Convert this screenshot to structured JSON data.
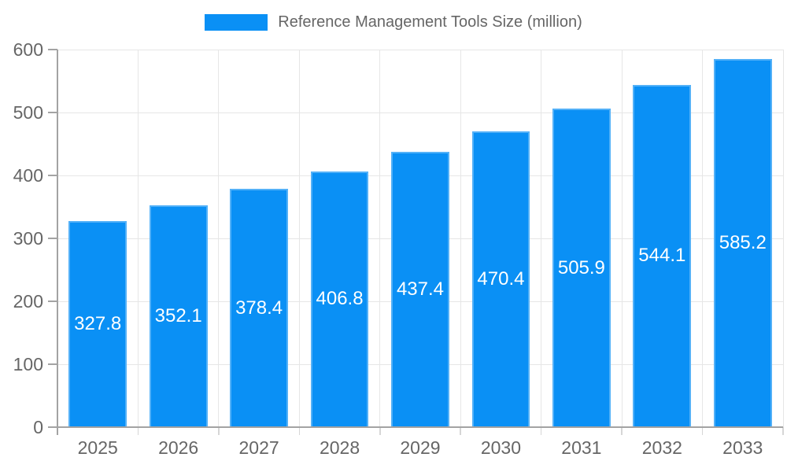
{
  "legend": {
    "label": "Reference Management Tools Size (million)"
  },
  "chart_data": {
    "type": "bar",
    "title": "Reference Management Tools Size (million)",
    "categories": [
      "2025",
      "2026",
      "2027",
      "2028",
      "2029",
      "2030",
      "2031",
      "2032",
      "2033"
    ],
    "values": [
      327.8,
      352.1,
      378.4,
      406.8,
      437.4,
      470.4,
      505.9,
      544.1,
      585.2
    ],
    "xlabel": "",
    "ylabel": "",
    "ylim": [
      0,
      600
    ],
    "yticks": [
      0,
      100,
      200,
      300,
      400,
      500,
      600
    ],
    "grid": true,
    "legend_position": "top",
    "value_labels_inside_bars": true,
    "colors": {
      "bar": "#0a90f5",
      "bar_edge": "rgba(255,255,255,0.3)",
      "value_label": "#ffffff",
      "tick_label": "#666666",
      "gridline": "#e6e6e6",
      "axis_line": "#a3a3a3",
      "x_tick_mark": "#d6d6d6"
    }
  }
}
